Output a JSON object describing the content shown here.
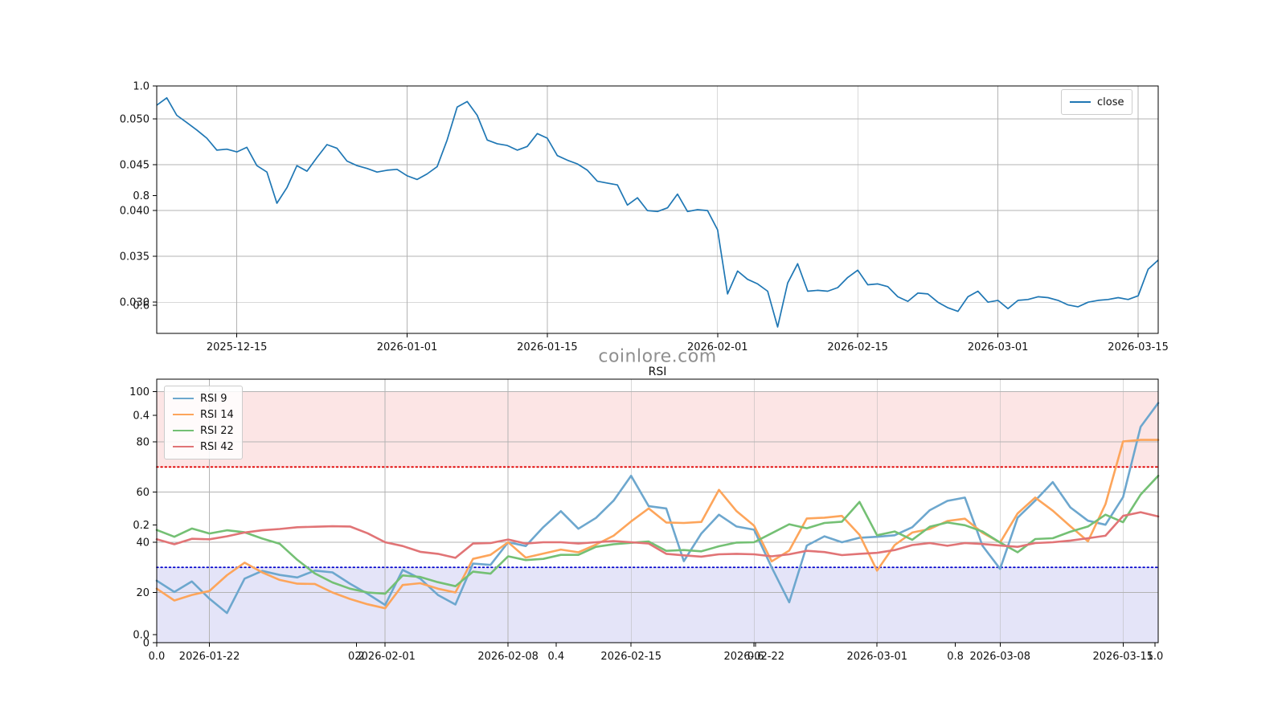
{
  "watermark": "coinlore.com",
  "overlay_axis": {
    "tick_labels": [
      "0.0",
      "0.2",
      "0.4",
      "0.6",
      "0.8",
      "1.0"
    ]
  },
  "colors": {
    "grid": "#b3b3b3",
    "frame": "#000000",
    "close_line": "#1f77b4",
    "rsi9": "#6da7ce",
    "rsi14": "#fda55b",
    "rsi22": "#74c074",
    "rsi42": "#e17476",
    "overbought_band": "#fce5e5",
    "oversold_band": "#e4e4f8",
    "overbought_line": "#e00000",
    "oversold_line": "#0000cc",
    "watermark": "#8f8f8f"
  },
  "chart_data": [
    {
      "id": "price",
      "type": "line",
      "title": "",
      "legend_position": "upper-right",
      "ylim": [
        0.0266,
        0.0536
      ],
      "day_span": 100,
      "y_ticks": [
        {
          "label": "0.050",
          "value": 0.05
        },
        {
          "label": "0.045",
          "value": 0.045
        },
        {
          "label": "0.040",
          "value": 0.04
        },
        {
          "label": "0.035",
          "value": 0.035
        },
        {
          "label": "0.030",
          "value": 0.03
        }
      ],
      "x_ticks": [
        {
          "label": "2025-12-15",
          "day": 8
        },
        {
          "label": "2026-01-01",
          "day": 25
        },
        {
          "label": "2026-01-15",
          "day": 39
        },
        {
          "label": "2026-02-01",
          "day": 56
        },
        {
          "label": "2026-02-15",
          "day": 70
        },
        {
          "label": "2026-03-01",
          "day": 84
        },
        {
          "label": "2026-03-15",
          "day": 98
        }
      ],
      "series": [
        {
          "name": "close",
          "color": "#1f77b4",
          "values": [
            0.0515,
            0.0523,
            0.0504,
            0.0496,
            0.0488,
            0.0479,
            0.0466,
            0.0467,
            0.0464,
            0.0469,
            0.0449,
            0.0442,
            0.0408,
            0.0425,
            0.0449,
            0.0443,
            0.0458,
            0.0472,
            0.0468,
            0.0454,
            0.0449,
            0.0446,
            0.0442,
            0.0444,
            0.0445,
            0.0438,
            0.0434,
            0.044,
            0.0448,
            0.0477,
            0.0513,
            0.0519,
            0.0504,
            0.0477,
            0.0473,
            0.0471,
            0.0466,
            0.047,
            0.0484,
            0.0479,
            0.046,
            0.0455,
            0.0451,
            0.0444,
            0.0432,
            0.043,
            0.0428,
            0.0406,
            0.0414,
            0.04,
            0.0399,
            0.0403,
            0.0418,
            0.0399,
            0.0401,
            0.04,
            0.0379,
            0.0309,
            0.0334,
            0.0325,
            0.032,
            0.0312,
            0.0273,
            0.0321,
            0.0342,
            0.0312,
            0.0313,
            0.0312,
            0.0316,
            0.0327,
            0.0335,
            0.0319,
            0.032,
            0.0317,
            0.0306,
            0.0301,
            0.031,
            0.0309,
            0.03,
            0.0294,
            0.029,
            0.0306,
            0.0312,
            0.03,
            0.0302,
            0.0293,
            0.0302,
            0.0303,
            0.0306,
            0.0305,
            0.0302,
            0.0297,
            0.0295,
            0.03,
            0.0302,
            0.0303,
            0.0305,
            0.0303,
            0.0307,
            0.0336,
            0.0346
          ]
        }
      ]
    },
    {
      "id": "rsi",
      "type": "line",
      "title": "RSI",
      "legend_position": "upper-left",
      "ylim": [
        0,
        105
      ],
      "day_span": 57,
      "overbought_level": 70,
      "oversold_level": 30,
      "band_top": 100,
      "band_bottom": 0,
      "y_ticks": [
        {
          "label": "100",
          "value": 100
        },
        {
          "label": "80",
          "value": 80
        },
        {
          "label": "60",
          "value": 60
        },
        {
          "label": "40",
          "value": 40
        },
        {
          "label": "20",
          "value": 20
        },
        {
          "label": "0",
          "value": 0
        }
      ],
      "x_ticks": [
        {
          "label": "2026-01-22",
          "day": 3
        },
        {
          "label": "2026-02-01",
          "day": 13
        },
        {
          "label": "2026-02-08",
          "day": 20
        },
        {
          "label": "2026-02-15",
          "day": 27
        },
        {
          "label": "2026-02-22",
          "day": 34
        },
        {
          "label": "2026-03-01",
          "day": 41
        },
        {
          "label": "2026-03-08",
          "day": 48
        },
        {
          "label": "2026-03-15",
          "day": 55
        }
      ],
      "series": [
        {
          "name": "RSI 9",
          "color": "#6da7ce",
          "values": [
            24.7,
            20.2,
            24.4,
            17.5,
            11.8,
            25.5,
            28.6,
            27.0,
            26.0,
            28.7,
            28.0,
            23.5,
            19.5,
            15.0,
            29.0,
            25.5,
            19.0,
            15.2,
            31.5,
            31.0,
            40.0,
            38.5,
            46.0,
            52.4,
            45.4,
            49.7,
            56.6,
            66.5,
            54.4,
            53.5,
            32.5,
            43.5,
            51.0,
            46.3,
            45.0,
            30.0,
            16.1,
            38.7,
            42.4,
            40.0,
            41.8,
            42.2,
            42.8,
            46.0,
            52.8,
            56.5,
            57.8,
            38.6,
            29.4,
            49.8,
            56.6,
            64.0,
            53.9,
            48.6,
            47.0,
            58.0,
            86.0,
            95.5
          ]
        },
        {
          "name": "RSI 14",
          "color": "#fda55b",
          "values": [
            21.5,
            16.8,
            19.0,
            20.6,
            26.9,
            31.9,
            28.0,
            25.0,
            23.5,
            23.4,
            20.0,
            17.4,
            15.3,
            13.7,
            23.0,
            23.7,
            21.5,
            20.0,
            33.4,
            35.0,
            40.0,
            33.9,
            35.5,
            37.1,
            36.0,
            39.1,
            42.6,
            48.3,
            53.5,
            47.9,
            47.7,
            48.1,
            60.9,
            52.4,
            46.6,
            32.4,
            36.7,
            49.5,
            49.8,
            50.5,
            43.0,
            28.7,
            38.9,
            43.9,
            45.3,
            48.5,
            49.4,
            43.8,
            39.9,
            51.5,
            57.8,
            52.6,
            46.4,
            40.4,
            55.2,
            80.2,
            80.8,
            80.8
          ]
        },
        {
          "name": "RSI 22",
          "color": "#74c074",
          "values": [
            44.9,
            42.2,
            45.5,
            43.5,
            44.8,
            44.0,
            41.5,
            39.4,
            33.0,
            27.6,
            24.0,
            21.5,
            20.0,
            19.5,
            26.8,
            26.2,
            24.1,
            22.5,
            28.3,
            27.5,
            34.4,
            32.9,
            33.4,
            35.0,
            35.0,
            38.2,
            39.2,
            39.8,
            40.3,
            36.6,
            36.9,
            36.4,
            38.4,
            39.9,
            40.0,
            43.6,
            47.2,
            45.6,
            47.7,
            48.2,
            56.1,
            42.8,
            44.3,
            41.0,
            46.2,
            47.9,
            46.8,
            44.3,
            39.9,
            36.0,
            41.3,
            41.6,
            44.2,
            46.3,
            51.0,
            48.0,
            59.0,
            66.5
          ]
        },
        {
          "name": "RSI 42",
          "color": "#e17476",
          "values": [
            41.2,
            39.2,
            41.4,
            41.2,
            42.4,
            43.9,
            44.8,
            45.3,
            46.0,
            46.2,
            46.4,
            46.3,
            43.6,
            40.0,
            38.5,
            36.2,
            35.4,
            33.8,
            39.5,
            39.7,
            41.1,
            39.5,
            40.0,
            40.0,
            39.5,
            40.0,
            40.5,
            40.0,
            39.5,
            35.4,
            34.8,
            34.3,
            35.2,
            35.4,
            35.2,
            34.4,
            35.2,
            36.6,
            36.1,
            34.9,
            35.4,
            35.8,
            36.9,
            38.9,
            39.7,
            38.6,
            39.7,
            39.3,
            38.7,
            38.2,
            39.7,
            40.0,
            40.7,
            41.6,
            42.6,
            50.5,
            52.0,
            50.3
          ]
        }
      ]
    }
  ]
}
